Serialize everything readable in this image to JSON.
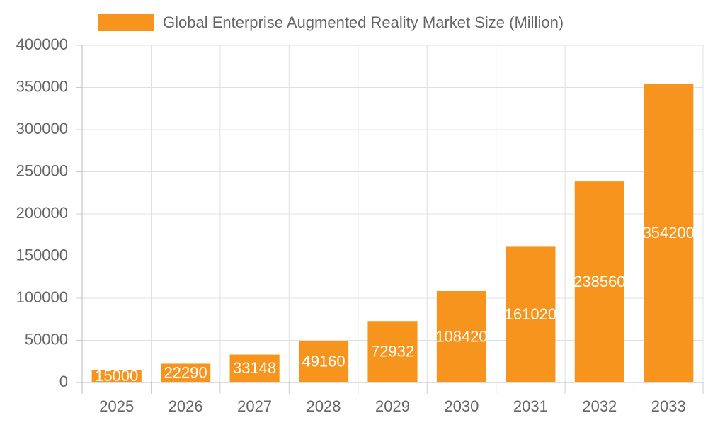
{
  "chart_data": {
    "type": "bar",
    "categories": [
      "2025",
      "2026",
      "2027",
      "2028",
      "2029",
      "2030",
      "2031",
      "2032",
      "2033"
    ],
    "series": [
      {
        "name": "Global Enterprise Augmented Reality Market Size (Million)",
        "color": "#f7941d",
        "values": [
          15000,
          22290,
          33148,
          49160,
          72932,
          108420,
          161020,
          238560,
          354200
        ]
      }
    ],
    "ylim": [
      0,
      400000
    ],
    "yticks": [
      0,
      50000,
      100000,
      150000,
      200000,
      250000,
      300000,
      350000,
      400000
    ],
    "grid": true,
    "legend": "top"
  }
}
